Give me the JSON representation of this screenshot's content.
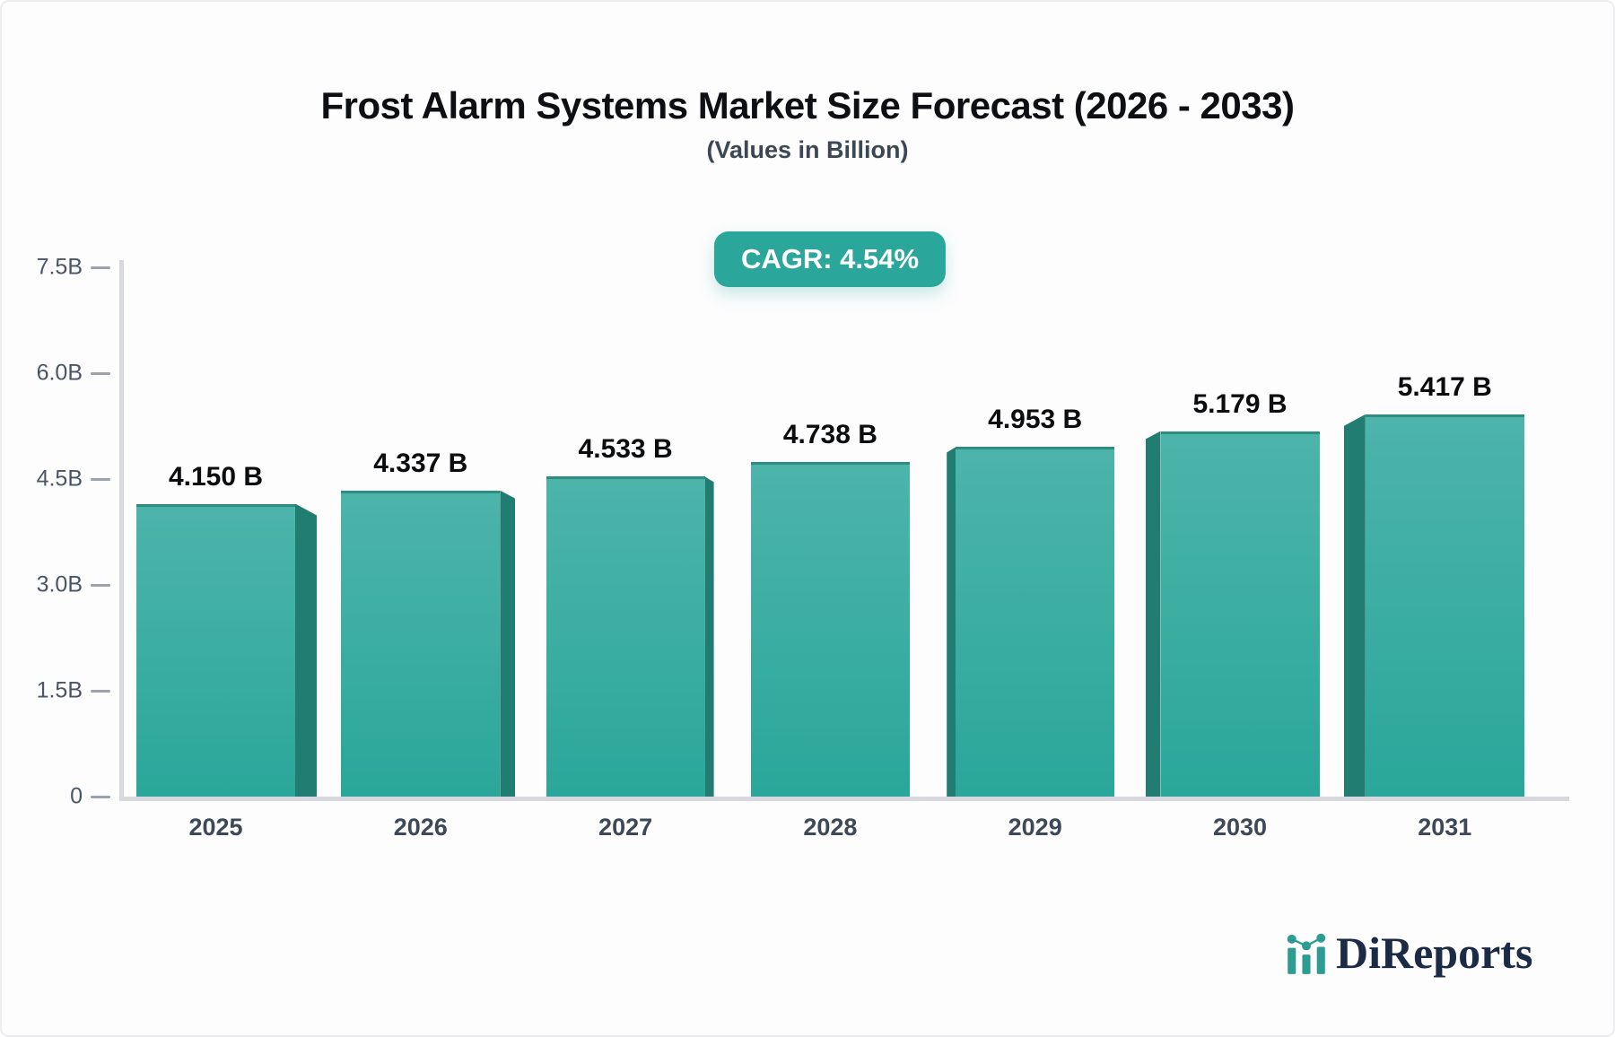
{
  "chart_data": {
    "type": "bar",
    "title": "Frost Alarm Systems Market Size Forecast (2026 - 2033)",
    "subtitle": "(Values in Billion)",
    "cagr_label": "CAGR: 4.54%",
    "categories": [
      "2025",
      "2026",
      "2027",
      "2028",
      "2029",
      "2030",
      "2031"
    ],
    "values": [
      4.15,
      4.337,
      4.533,
      4.738,
      4.953,
      5.179,
      5.417
    ],
    "value_labels": [
      "4.150 B",
      "4.337 B",
      "4.533 B",
      "4.738 B",
      "4.953 B",
      "5.179 B",
      "5.417 B"
    ],
    "xlabel": "",
    "ylabel": "",
    "ylim": [
      0,
      7.5
    ],
    "yticks": [
      {
        "value": 0,
        "label": "0"
      },
      {
        "value": 1.5,
        "label": "1.5B"
      },
      {
        "value": 3.0,
        "label": "3.0B"
      },
      {
        "value": 4.5,
        "label": "4.5B"
      },
      {
        "value": 6.0,
        "label": "6.0B"
      },
      {
        "value": 7.5,
        "label": "7.5B"
      }
    ],
    "grid": false,
    "legend": false,
    "bar_style": "3d-perspective",
    "colors": {
      "bar_top": "#4db4aa",
      "bar_bottom": "#2aa79a",
      "bar_top_edge": "#2e8c81",
      "bar_side": "#217d72",
      "badge_bg": "#2aa69b",
      "badge_text": "#ffffff",
      "axis_line": "#d7d9de",
      "tick_dash": "#9aa2ac",
      "y_label": "#4b5563",
      "x_label": "#3e4856",
      "value_label": "#0a0c0e",
      "title": "#0d0f13",
      "subtitle": "#3d4654"
    }
  },
  "logo": {
    "text": "DiReports",
    "icon": "bar-chart-trend-icon",
    "text_color": "#1c2b45",
    "icon_color": "#2f9c93"
  }
}
